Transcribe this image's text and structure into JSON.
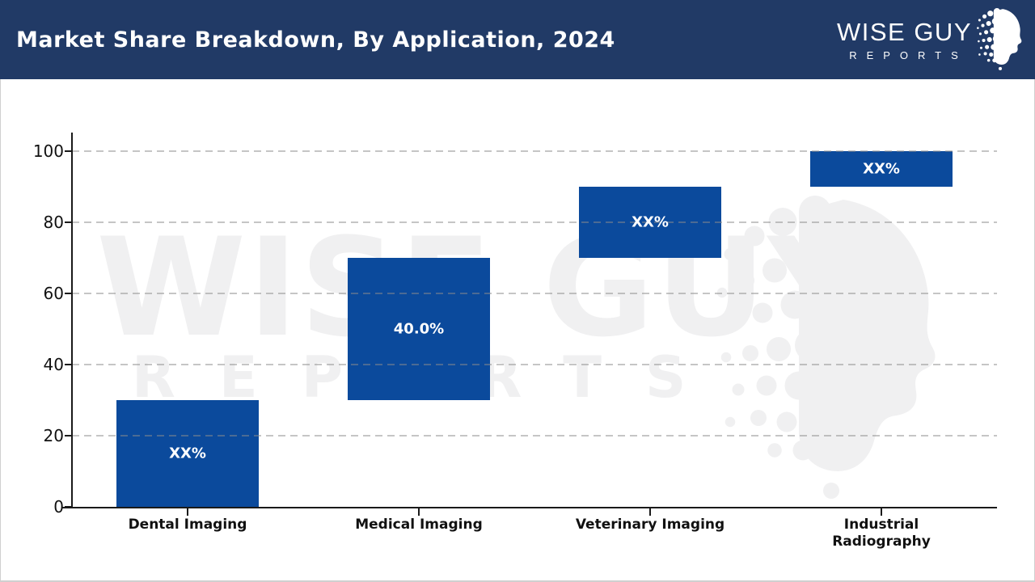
{
  "header": {
    "title": "Market Share Breakdown, By Application, 2024",
    "logo": {
      "line1": "WISE GUY",
      "line2": "REPORTS"
    }
  },
  "watermark": {
    "line1": "WISE GUY",
    "line2": "REPORTS"
  },
  "chart_data": {
    "type": "bar",
    "subtype": "floating-waterfall",
    "title": "Market Share Breakdown, By Application, 2024",
    "categories": [
      "Dental Imaging",
      "Medical Imaging",
      "Veterinary Imaging",
      "Industrial\nRadiography"
    ],
    "bars": [
      {
        "category": "Dental Imaging",
        "start": 0,
        "end": 30,
        "value_pct": 30,
        "label": "XX%"
      },
      {
        "category": "Medical Imaging",
        "start": 30,
        "end": 70,
        "value_pct": 40,
        "label": "40.0%"
      },
      {
        "category": "Veterinary Imaging",
        "start": 70,
        "end": 90,
        "value_pct": 20,
        "label": "XX%"
      },
      {
        "category": "Industrial\nRadiography",
        "start": 90,
        "end": 100,
        "value_pct": 10,
        "label": "XX%"
      }
    ],
    "xlabel": "",
    "ylabel": "",
    "ylim": [
      0,
      100
    ],
    "yticks": [
      0,
      20,
      40,
      60,
      80,
      100
    ],
    "grid": "horizontal dashed, drawn over bars",
    "legend": "none",
    "bar_color": "#0b4a9c",
    "bar_label_color": "#ffffff"
  },
  "colors": {
    "header_bg": "#213a66",
    "bar": "#0b4a9c",
    "watermark": "#f0f0f1",
    "axis": "#1a1a1a",
    "grid": "#c8c8c8"
  },
  "icons": {
    "logo_head": "dotted-face-profile"
  }
}
